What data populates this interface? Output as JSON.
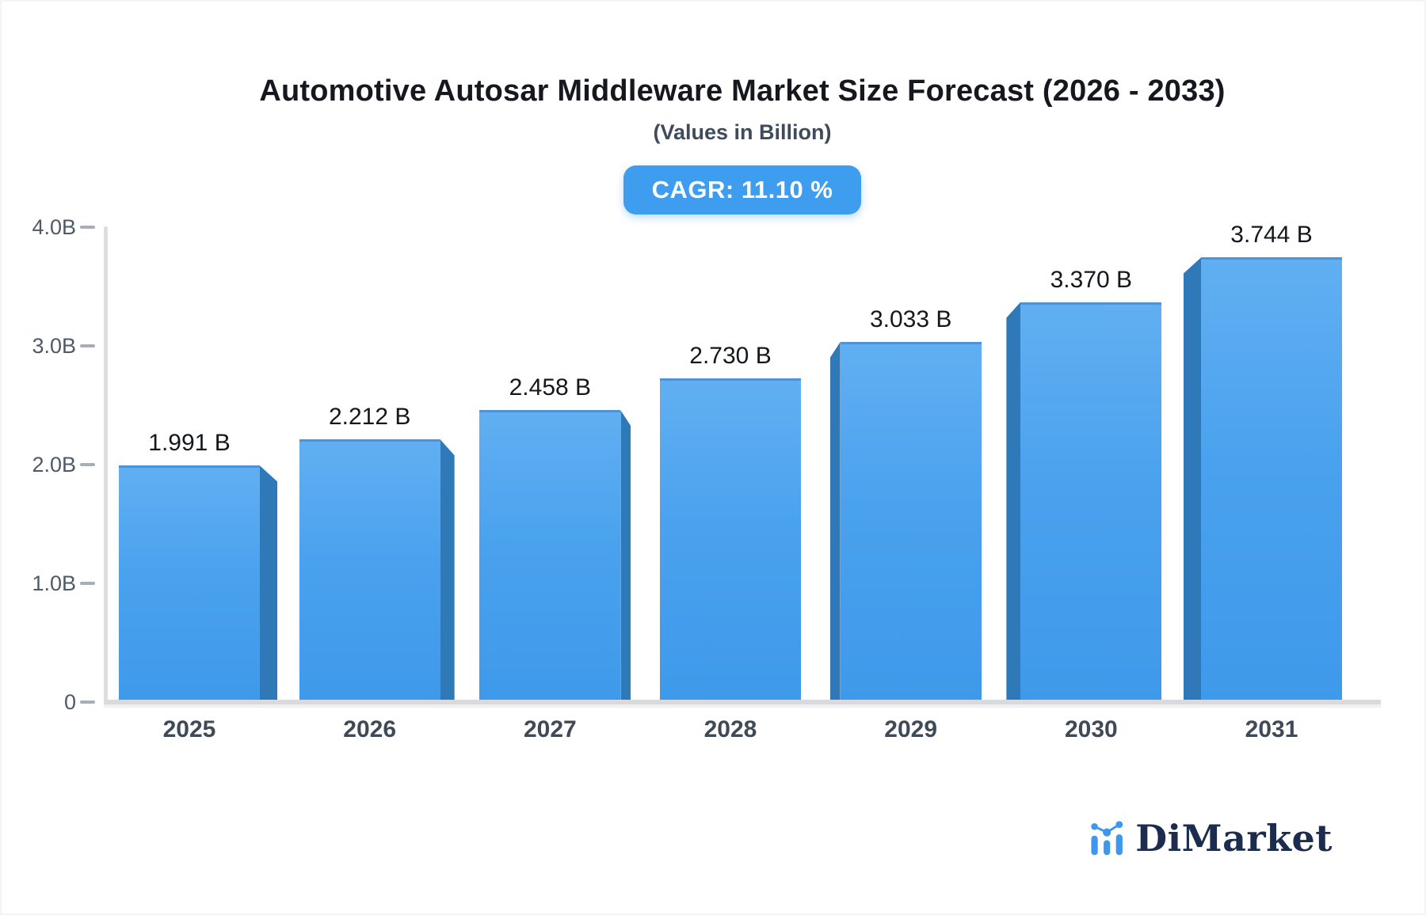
{
  "header": {
    "title": "Automotive Autosar Middleware Market Size Forecast (2026 - 2033)",
    "subtitle": "(Values in Billion)",
    "cagr_label": "CAGR: 11.10 %"
  },
  "footer": {
    "brand": "DiMarket"
  },
  "colors": {
    "bar_face_top": "#61aff2",
    "bar_face_bottom": "#3f99ea",
    "bar_side": "#2f79b9",
    "bar_top_edge": "#4b94d8",
    "badge_bg": "#3f9df0",
    "axis_line": "#d8dadd",
    "tick_dash": "#a7aeb8",
    "logo_blue": "#3e96ef",
    "logo_navy": "#1c2c4e"
  },
  "chart_data": {
    "type": "bar",
    "title": "Automotive Autosar Middleware Market Size Forecast (2026 - 2033)",
    "subtitle": "(Values in Billion)",
    "cagr": "11.10 %",
    "categories": [
      "2025",
      "2026",
      "2027",
      "2028",
      "2029",
      "2030",
      "2031"
    ],
    "values": [
      1.991,
      2.212,
      2.458,
      2.73,
      3.033,
      3.37,
      3.744
    ],
    "value_labels": [
      "1.991 B",
      "2.212 B",
      "2.458 B",
      "2.730 B",
      "3.033 B",
      "3.370 B",
      "3.744 B"
    ],
    "unit": "Billion",
    "xlabel": "",
    "ylabel": "",
    "ylim": [
      0,
      4
    ],
    "y_ticks": {
      "labels": [
        "4.0B",
        "3.0B",
        "2.0B",
        "1.0B",
        "0"
      ],
      "values": [
        4,
        3,
        2,
        1,
        0
      ]
    },
    "grid": false,
    "legend": false,
    "style": "3d-perspective-bars"
  }
}
